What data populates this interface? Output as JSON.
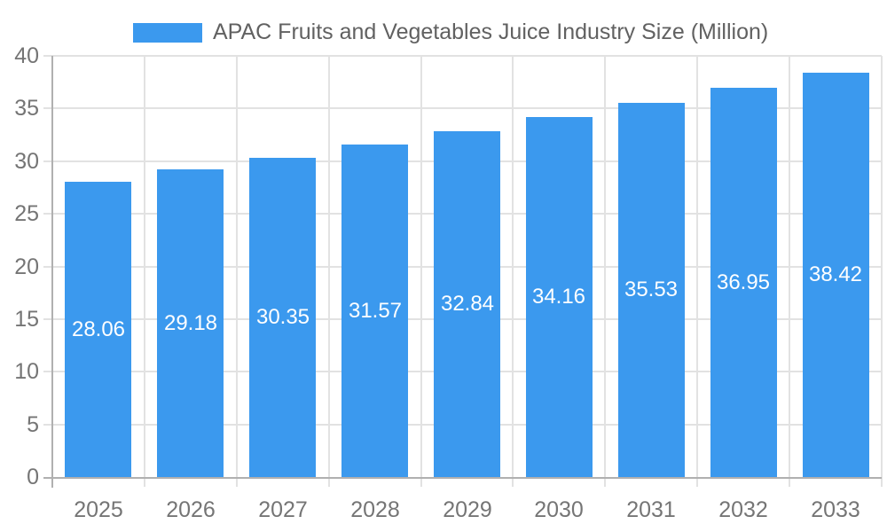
{
  "legend": {
    "label": "APAC Fruits and Vegetables Juice Industry Size (Million)",
    "swatch_color": "#3B99EE"
  },
  "chart_data": {
    "type": "bar",
    "title": "APAC Fruits and Vegetables Juice Industry Size (Million)",
    "series_name": "APAC Fruits and Vegetables Juice Industry Size (Million)",
    "categories": [
      "2025",
      "2026",
      "2027",
      "2028",
      "2029",
      "2030",
      "2031",
      "2032",
      "2033"
    ],
    "values": [
      28.06,
      29.18,
      30.35,
      31.57,
      32.84,
      34.16,
      35.53,
      36.95,
      38.42
    ],
    "value_labels": [
      "28.06",
      "29.18",
      "30.35",
      "31.57",
      "32.84",
      "34.16",
      "35.53",
      "36.95",
      "38.42"
    ],
    "xlabel": "",
    "ylabel": "",
    "ylim": [
      0,
      40
    ],
    "ytick_labels": [
      "0",
      "5",
      "10",
      "15",
      "20",
      "25",
      "30",
      "35",
      "40"
    ],
    "grid": true,
    "legend_position": "top",
    "value_labels_position": "inside-center"
  },
  "colors": {
    "bar": "#3B99EE",
    "grid": "#e2e2e2",
    "axis": "#b0b0b0",
    "tick_label": "#757575",
    "legend_text": "#616161",
    "value_label": "#ffffff"
  }
}
